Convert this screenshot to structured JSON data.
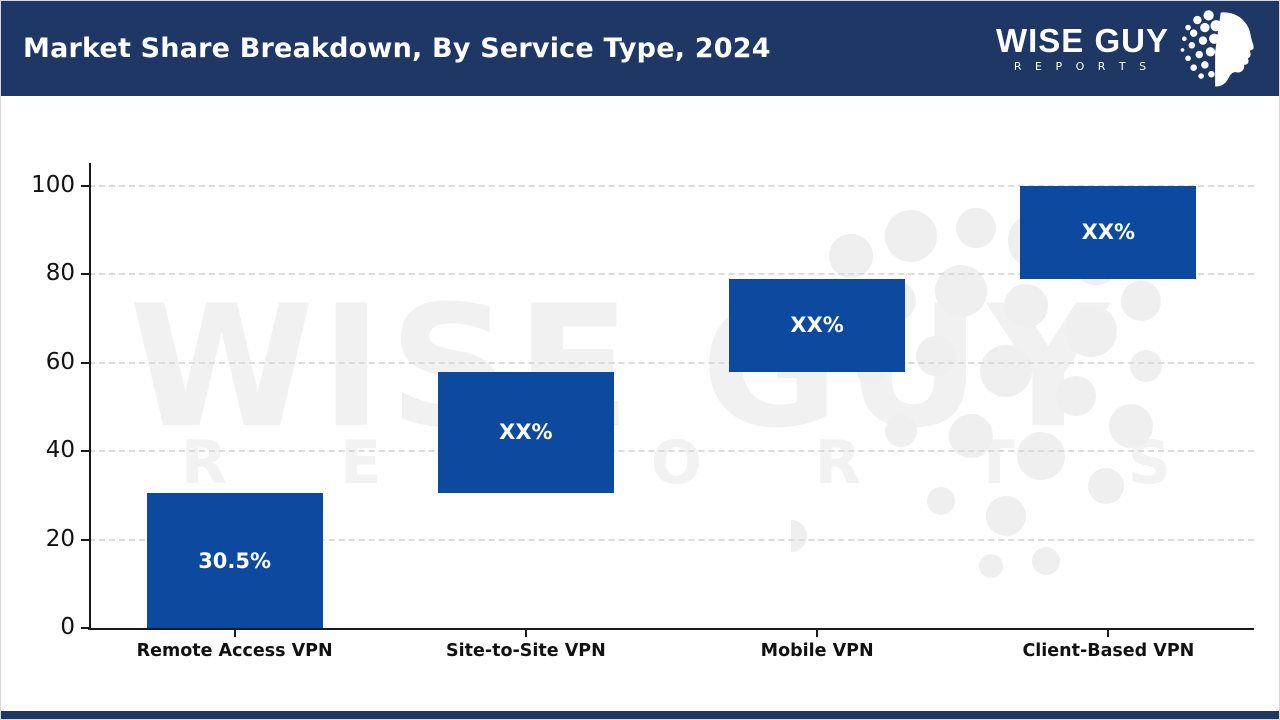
{
  "header": {
    "title": "Market Share Breakdown, By Service Type, 2024",
    "logo": {
      "name": "WISE GUY",
      "sub": "R E P O R T S"
    }
  },
  "watermark": {
    "line1": "WISE GUY",
    "line2": "R E P O R T S"
  },
  "colors": {
    "header_bg": "#1f3765",
    "footer_bg": "#1f3765",
    "bar": "#0d4a9f",
    "grid": "#dcdcdc",
    "axis": "#1a1a1a",
    "bar_label": "#ffffff",
    "watermark": "#f1f1f1"
  },
  "chart_data": {
    "type": "bar",
    "variant": "waterfall",
    "title": "Market Share Breakdown, By Service Type, 2024",
    "unit": "%",
    "categories": [
      "Remote Access VPN",
      "Site-to-Site VPN",
      "Mobile VPN",
      "Client-Based VPN"
    ],
    "segments": [
      {
        "category": "Remote Access VPN",
        "start": 0,
        "end": 30.5,
        "label": "30.5%"
      },
      {
        "category": "Site-to-Site VPN",
        "start": 30.5,
        "end": 58,
        "label": "XX%"
      },
      {
        "category": "Mobile VPN",
        "start": 58,
        "end": 79,
        "label": "XX%"
      },
      {
        "category": "Client-Based VPN",
        "start": 79,
        "end": 100,
        "label": "XX%"
      }
    ],
    "yticks": [
      0,
      20,
      40,
      60,
      80,
      100
    ],
    "ylim": [
      0,
      105
    ],
    "grid": "horizontal-dashed",
    "legend": "none"
  }
}
